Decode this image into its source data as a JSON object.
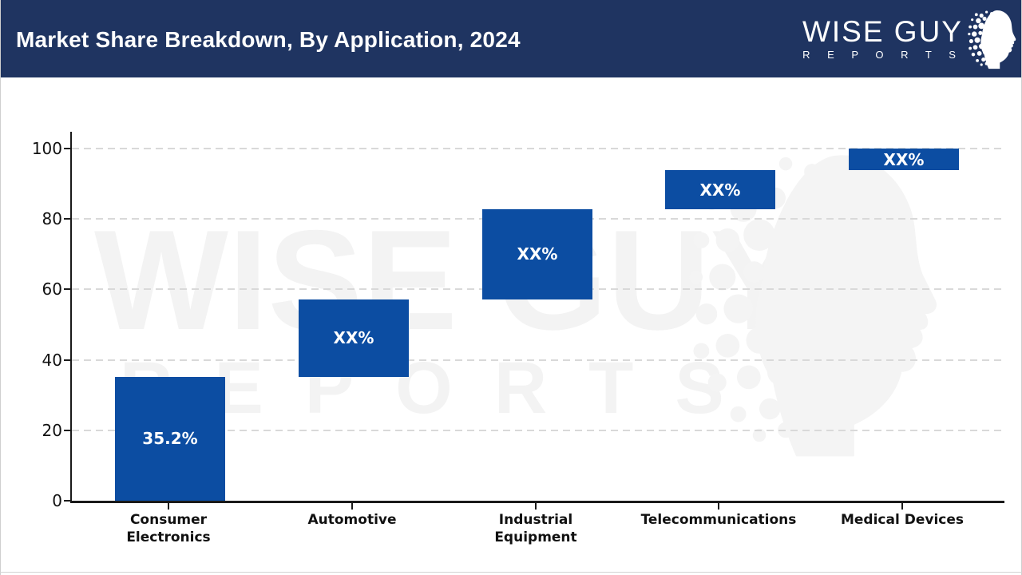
{
  "header": {
    "title": "Market Share Breakdown, By Application, 2024",
    "bg_color": "#1f3461",
    "brand": {
      "name": "WISE GUY",
      "sub": "R E P O R T S"
    }
  },
  "watermark": {
    "line1": "WISE GUY",
    "line2": "REPORTS"
  },
  "chart_data": {
    "type": "bar",
    "subtype": "waterfall",
    "title": "Market Share Breakdown, By Application, 2024",
    "categories": [
      "Consumer\nElectronics",
      "Automotive",
      "Industrial\nEquipment",
      "Telecommunications",
      "Medical Devices"
    ],
    "segments": [
      {
        "category": "Consumer Electronics",
        "start": 0,
        "end": 35.2,
        "value": 35.2,
        "label": "35.2%"
      },
      {
        "category": "Automotive",
        "start": 35.2,
        "end": 57.2,
        "value": 22.0,
        "label": "XX%"
      },
      {
        "category": "Industrial Equipment",
        "start": 57.2,
        "end": 82.8,
        "value": 25.6,
        "label": "XX%"
      },
      {
        "category": "Telecommunications",
        "start": 82.8,
        "end": 93.8,
        "value": 11.0,
        "label": "XX%"
      },
      {
        "category": "Medical Devices",
        "start": 93.8,
        "end": 100.0,
        "value": 6.2,
        "label": "XX%"
      }
    ],
    "yticks": [
      0,
      20,
      40,
      60,
      80,
      100
    ],
    "ylim": [
      0,
      104.7
    ],
    "xlabel": "",
    "ylabel": "",
    "bar_color": "#0c4da2",
    "label_color": "#ffffff",
    "grid": "horizontal-dashed",
    "legend": "none"
  }
}
